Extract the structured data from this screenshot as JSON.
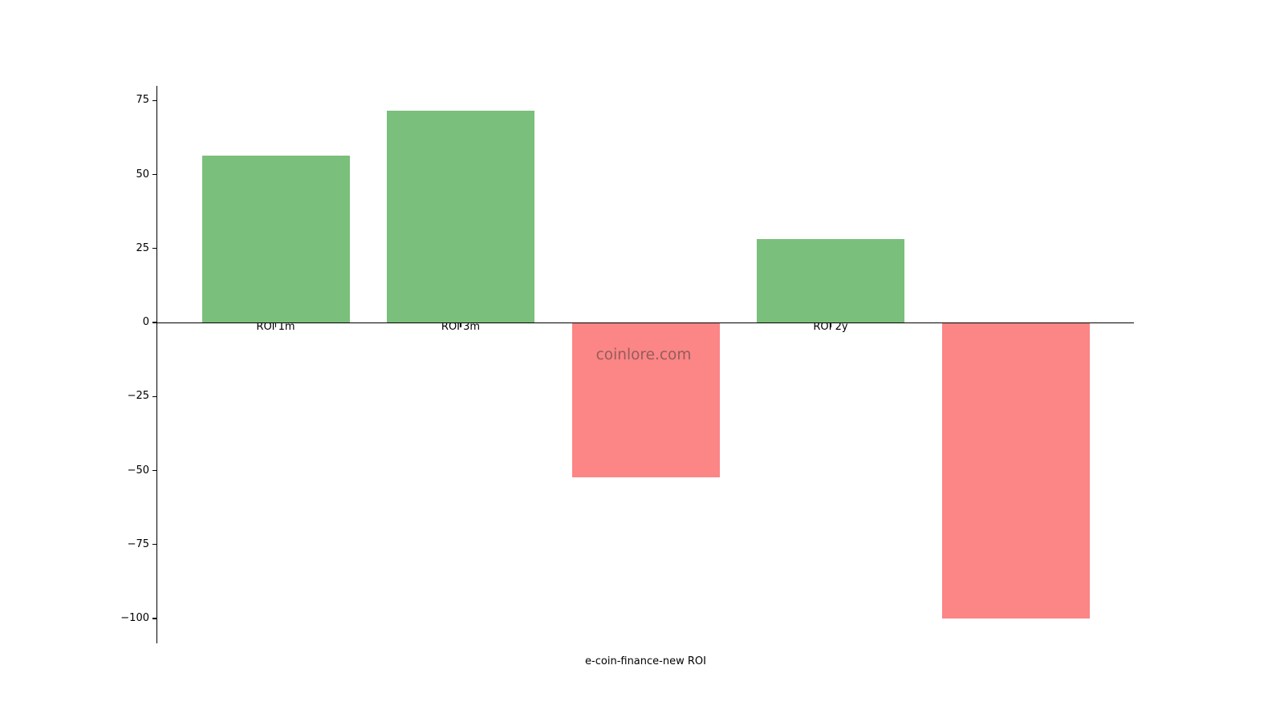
{
  "chart_data": {
    "type": "bar",
    "title": "e-coin-finance-new ROI",
    "watermark": "coinlore.com",
    "categories": [
      "ROI 1m",
      "ROI 3m",
      "",
      "ROI 2y",
      ""
    ],
    "values": [
      56.4,
      71.5,
      -52.3,
      28.2,
      -100
    ],
    "yticks": [
      75,
      50,
      25,
      0,
      -25,
      -50,
      -75,
      -100
    ],
    "ylim": [
      -108.5,
      79.5
    ],
    "xlabel": "",
    "ylabel": "",
    "grid": false,
    "legend_position": "none",
    "colors": {
      "positive_bar": "#7abf7b",
      "negative_bar": "#fc8585",
      "axis": "#000000",
      "tick_text": "#000000",
      "watermark_text": "rgba(60,60,60,1)"
    }
  }
}
